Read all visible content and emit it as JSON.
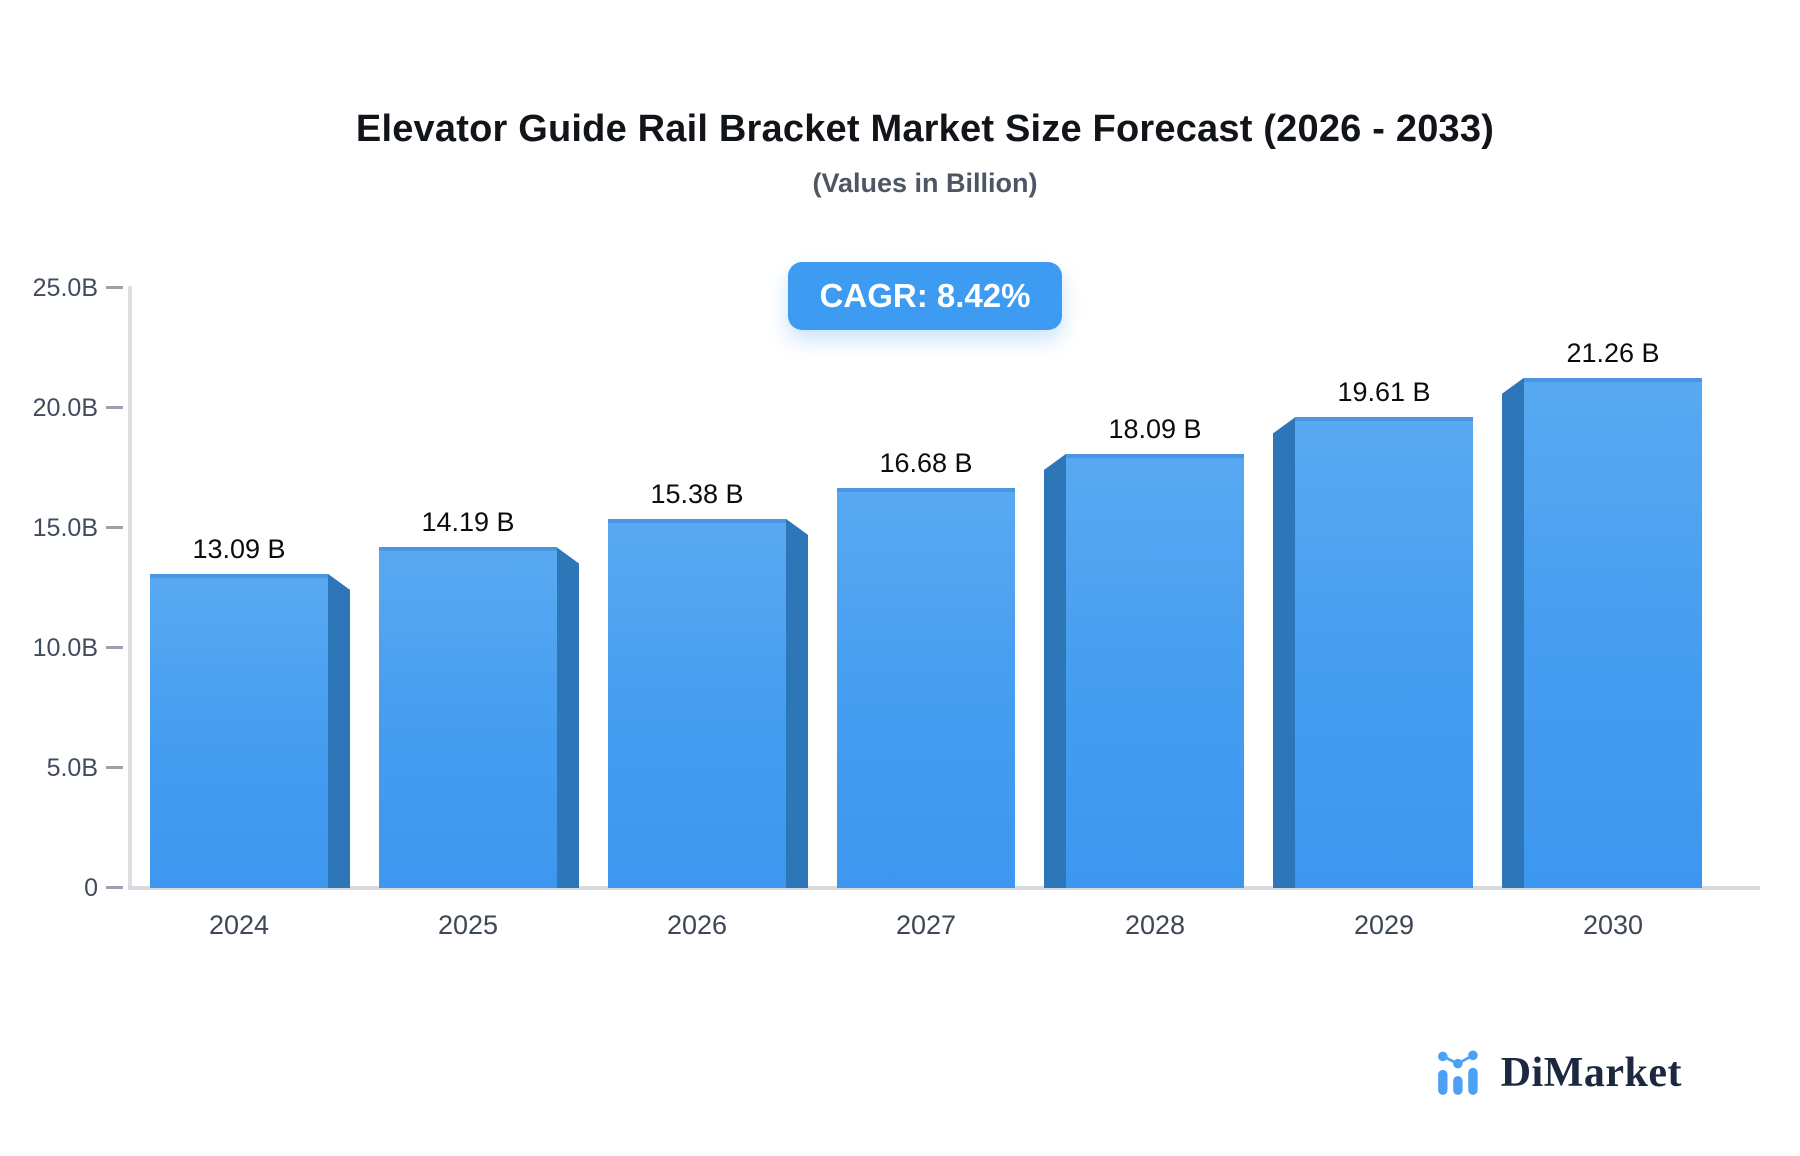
{
  "header": {
    "title": "Elevator Guide Rail Bracket Market Size Forecast (2026 - 2033)",
    "subtitle": "(Values in Billion)",
    "cagr_badge": "CAGR: 8.42%"
  },
  "chart_data": {
    "type": "bar",
    "title": "Elevator Guide Rail Bracket Market Size Forecast (2026 - 2033)",
    "subtitle": "(Values in Billion)",
    "cagr": "8.42%",
    "categories": [
      "2024",
      "2025",
      "2026",
      "2027",
      "2028",
      "2029",
      "2030"
    ],
    "values": [
      13.09,
      14.19,
      15.38,
      16.68,
      18.09,
      19.61,
      21.26
    ],
    "value_labels": [
      "13.09 B",
      "14.19 B",
      "15.38 B",
      "16.68 B",
      "18.09 B",
      "19.61 B",
      "21.26 B"
    ],
    "xlabel": "",
    "ylabel": "",
    "ylim": [
      0,
      25
    ],
    "yticks": [
      {
        "label": "25.0B",
        "value": 25
      },
      {
        "label": "20.0B",
        "value": 20
      },
      {
        "label": "15.0B",
        "value": 15
      },
      {
        "label": "10.0B",
        "value": 10
      },
      {
        "label": "5.0B",
        "value": 5
      },
      {
        "label": "0",
        "value": 0
      }
    ],
    "grid": false,
    "legend": "none",
    "style": "3d-bars, central vanishing point"
  },
  "branding": {
    "name": "DiMarket",
    "logo_icon": "mini-bar-chart-with-trend-dots-icon"
  },
  "colors": {
    "bar_front_top": "#58a9f1",
    "bar_front_bottom": "#3e97ef",
    "bar_side": "#2d76b8",
    "badge_bg": "#3d9cf2",
    "axis_line": "#dbdee3",
    "tick_text": "#414c5c",
    "value_text": "#0a0c0e",
    "logo_blue": "#4aa1f6",
    "logo_navy": "#1c2840"
  }
}
